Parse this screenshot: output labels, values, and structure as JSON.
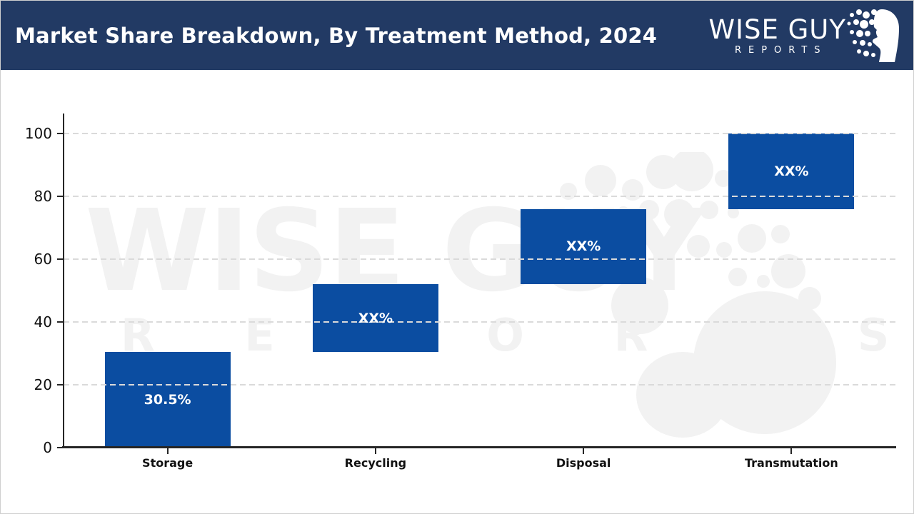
{
  "header": {
    "title": "Market Share Breakdown, By Treatment Method, 2024",
    "logo": {
      "line1": "WISE GUY",
      "line2": "REPORTS"
    }
  },
  "watermark": {
    "line1": "WISE GUY",
    "line2": "REPORTS"
  },
  "chart_data": {
    "type": "bar",
    "subtype": "floating-segment-waterfall",
    "title": "Market Share Breakdown, By Treatment Method, 2024",
    "categories": [
      "Storage",
      "Recycling",
      "Disposal",
      "Transmutation"
    ],
    "segments": [
      {
        "category": "Storage",
        "start": 0,
        "end": 30.5,
        "label": "30.5%"
      },
      {
        "category": "Recycling",
        "start": 30.5,
        "end": 52,
        "label": "XX%"
      },
      {
        "category": "Disposal",
        "start": 52,
        "end": 76,
        "label": "XX%"
      },
      {
        "category": "Transmutation",
        "start": 76,
        "end": 100,
        "label": "XX%"
      }
    ],
    "xlabel": "",
    "ylabel": "",
    "ylim": [
      0,
      100
    ],
    "yticks": [
      0,
      20,
      40,
      60,
      80,
      100
    ],
    "grid": "horizontal dashed, drawn above bars",
    "legend": "none",
    "colors": {
      "bar": "#0B4DA1",
      "grid": "#DADADA",
      "axis": "#262626",
      "header_bg": "#223A64",
      "title_text": "#FFFFFF",
      "watermark": "#F2F2F2"
    }
  }
}
